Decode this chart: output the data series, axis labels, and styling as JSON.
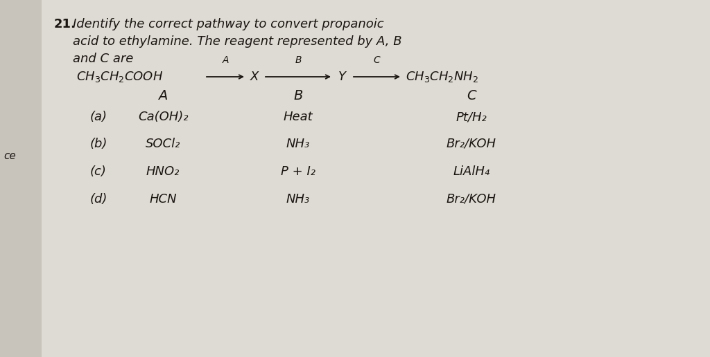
{
  "bg_color": "#c8c4bc",
  "page_color": "#dedad4",
  "text_color": "#2a2520",
  "dark_text": "#1a1510",
  "question_number": "21.",
  "question_text_line1": "Identify the correct pathway to convert propanoic",
  "question_text_line2": "acid to ethylamine. The reagent represented by A, B",
  "question_text_line3": "and C are",
  "col_headers": [
    "A",
    "B",
    "C"
  ],
  "options": [
    {
      "label": "(a)",
      "A": "Ca(OH)₂",
      "B": "Heat",
      "C": "Pt/H₂"
    },
    {
      "label": "(b)",
      "A": "SOCl₂",
      "B": "NH₃",
      "C": "Br₂/KOH"
    },
    {
      "label": "(c)",
      "A": "HNO₂",
      "B": "P + I₂",
      "C": "LiAlH₄"
    },
    {
      "label": "(d)",
      "A": "HCN",
      "B": "NH₃",
      "C": "Br₂/KOH"
    }
  ],
  "left_margin_text": "ce",
  "figsize": [
    10.24,
    5.16
  ],
  "dpi": 100
}
